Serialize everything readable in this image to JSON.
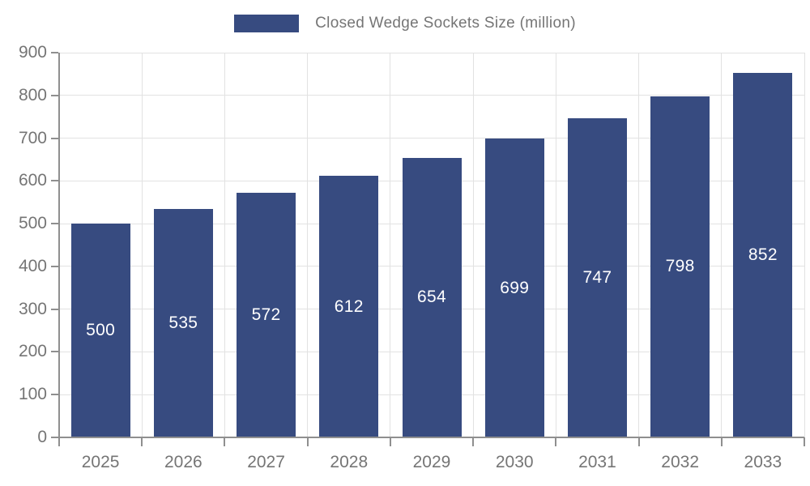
{
  "legend": {
    "label": "Closed Wedge Sockets Size (million)"
  },
  "chart_data": {
    "type": "bar",
    "title": "Closed Wedge Sockets Size (million)",
    "categories": [
      "2025",
      "2026",
      "2027",
      "2028",
      "2029",
      "2030",
      "2031",
      "2032",
      "2033"
    ],
    "values": [
      500,
      535,
      572,
      612,
      654,
      699,
      747,
      798,
      852
    ],
    "xlabel": "",
    "ylabel": "",
    "ylim": [
      0,
      900
    ],
    "ytick_step": 100,
    "grid": true,
    "legend_position": "top-center",
    "colors": {
      "bar": "#374B80",
      "value_label": "#ffffff",
      "axis": "#8f8f8f",
      "gridline": "#e2e2e2",
      "tick_label": "#757575",
      "legend_text": "#757575",
      "background": "#ffffff"
    }
  }
}
